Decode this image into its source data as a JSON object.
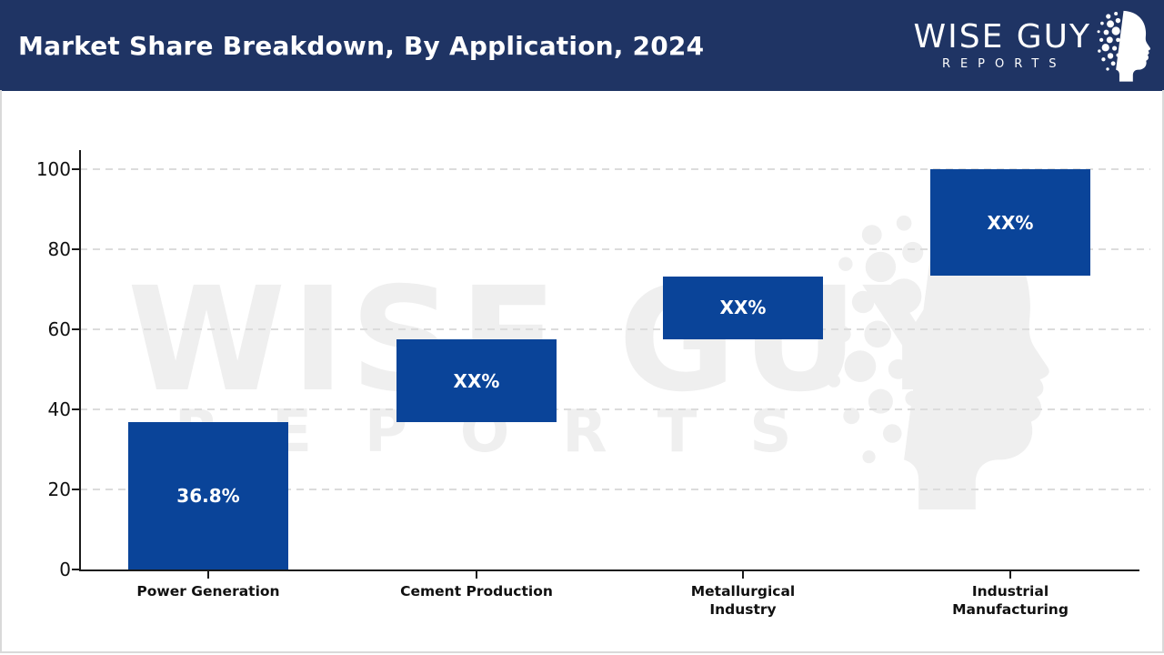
{
  "header": {
    "title": "Market Share Breakdown, By Application, 2024",
    "bg_color": "#1f3464",
    "logo": {
      "line1": "WISE GUY",
      "line2": "REPORTS"
    }
  },
  "watermark": {
    "line1": "WISE GUY",
    "line2": "REPORTS"
  },
  "chart_data": {
    "type": "bar",
    "subtype": "waterfall-floating-bars",
    "title": "Market Share Breakdown, By Application, 2024",
    "categories": [
      "Power Generation",
      "Cement Production",
      "Metallurgical\nIndustry",
      "Industrial\nManufacturing"
    ],
    "segments": [
      {
        "start": 0,
        "end": 36.8,
        "label": "36.8%"
      },
      {
        "start": 36.8,
        "end": 57.5,
        "label": "XX%"
      },
      {
        "start": 57.5,
        "end": 73.2,
        "label": "XX%"
      },
      {
        "start": 73.4,
        "end": 100,
        "label": "XX%"
      }
    ],
    "ylim": [
      0,
      100
    ],
    "yticks": [
      0,
      20,
      40,
      60,
      80,
      100
    ],
    "xlabel": "",
    "ylabel": "",
    "bar_color": "#0a4499",
    "grid": "horizontal-dashed",
    "grid_color": "#dcdcdc",
    "legend": "none"
  }
}
